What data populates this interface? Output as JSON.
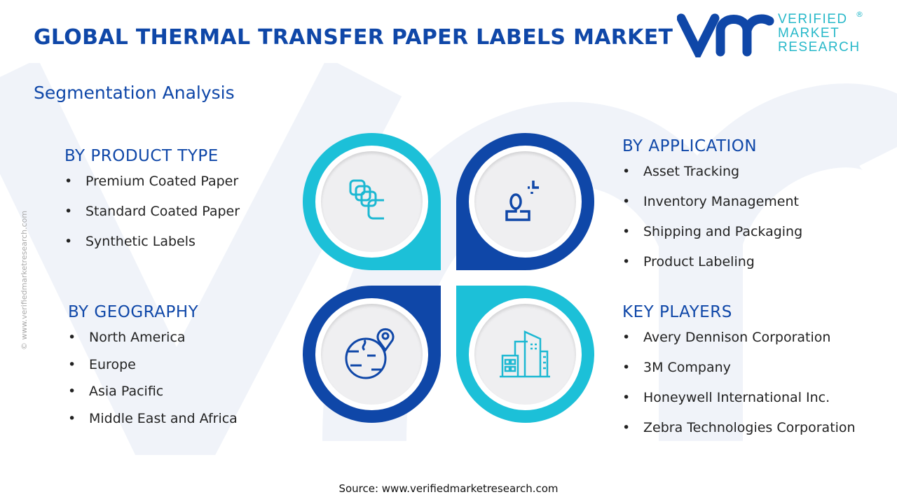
{
  "header": {
    "title": "GLOBAL THERMAL TRANSFER PAPER LABELS MARKET",
    "subtitle": "Segmentation Analysis"
  },
  "logo": {
    "line1": "VERIFIED",
    "line2": "MARKET",
    "line3": "RESEARCH",
    "mark": "vmr"
  },
  "side_text": "© www.verifiedmarketresearch.com",
  "colors": {
    "dark_blue": "#0f47a8",
    "cyan": "#1cc0d8"
  },
  "sections": {
    "product_type": {
      "title": "BY PRODUCT TYPE",
      "items": [
        "Premium Coated Paper",
        "Standard Coated Paper",
        "Synthetic Labels"
      ],
      "icon": "stacked-labels-icon"
    },
    "application": {
      "title": "BY APPLICATION",
      "items": [
        "Asset Tracking",
        "Inventory Management",
        "Shipping and Packaging",
        "Product Labeling"
      ],
      "icon": "user-target-icon"
    },
    "geography": {
      "title": "BY GEOGRAPHY",
      "items": [
        "North America",
        "Europe",
        "Asia Pacific",
        "Middle East and Africa"
      ],
      "icon": "globe-pin-icon"
    },
    "key_players": {
      "title": "KEY PLAYERS",
      "items": [
        "Avery Dennison Corporation",
        "3M Company",
        "Honeywell International Inc.",
        "Zebra Technologies Corporation"
      ],
      "icon": "buildings-icon"
    }
  },
  "bullet": "•",
  "source": "Source: www.verifiedmarketresearch.com"
}
